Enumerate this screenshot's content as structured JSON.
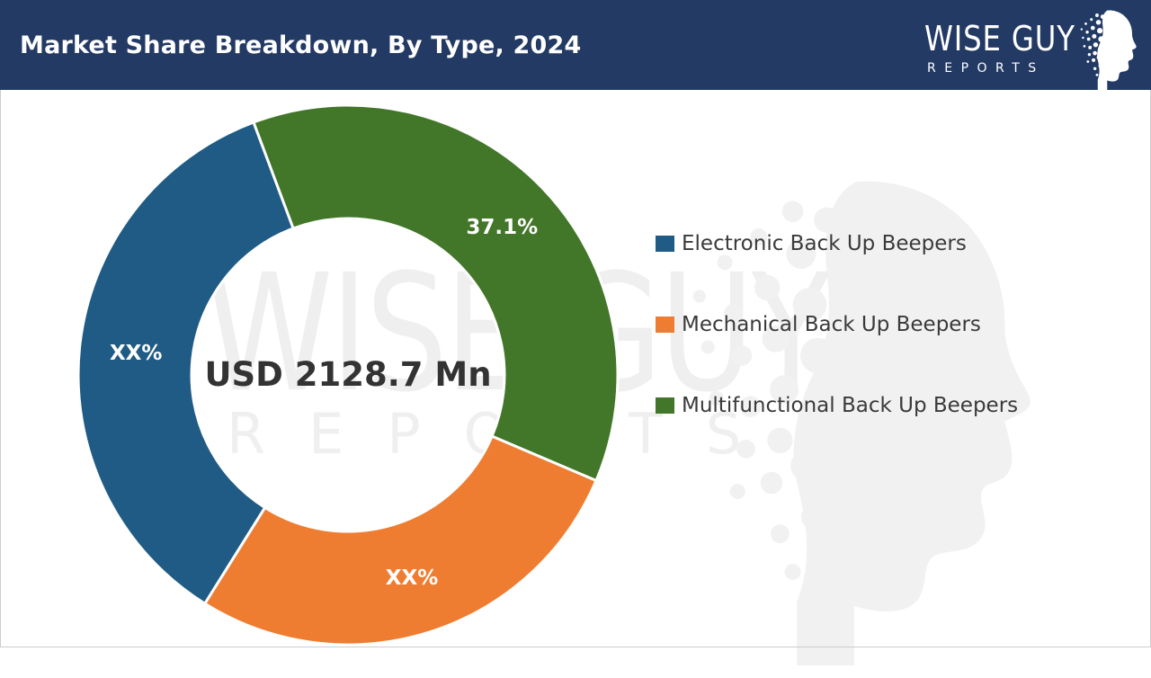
{
  "header": {
    "title": "Market Share Breakdown, By Type, 2024",
    "background": "#233A64",
    "logo": {
      "brand": "WISE GUY",
      "sub": "REPORTS"
    }
  },
  "watermark": {
    "brand": "WISE GUY",
    "sub": "REPORTS"
  },
  "chart_data": {
    "type": "donut",
    "title": "Market Share Breakdown, By Type, 2024",
    "center_label": "USD 2128.7 Mn",
    "start_angle_deg": -20.5,
    "outer_radius_px": 300,
    "inner_radius_px": 174,
    "segment_stroke": "#ffffff",
    "segments": [
      {
        "name": "Multifunctional Back Up Beepers",
        "value_pct": 37.1,
        "label": "37.1%",
        "color": "#427628"
      },
      {
        "name": "Mechanical Back Up Beepers",
        "value_pct": 27.5,
        "label": "XX%",
        "color": "#EF7D31"
      },
      {
        "name": "Electronic Back Up Beepers",
        "value_pct": 35.4,
        "label": "XX%",
        "color": "#1F5B84"
      }
    ]
  },
  "legend": {
    "items": [
      {
        "label": "Electronic Back Up Beepers",
        "color": "#1F5B84"
      },
      {
        "label": "Mechanical Back Up Beepers",
        "color": "#EF7D31"
      },
      {
        "label": "Multifunctional Back Up Beepers",
        "color": "#427628"
      }
    ]
  }
}
